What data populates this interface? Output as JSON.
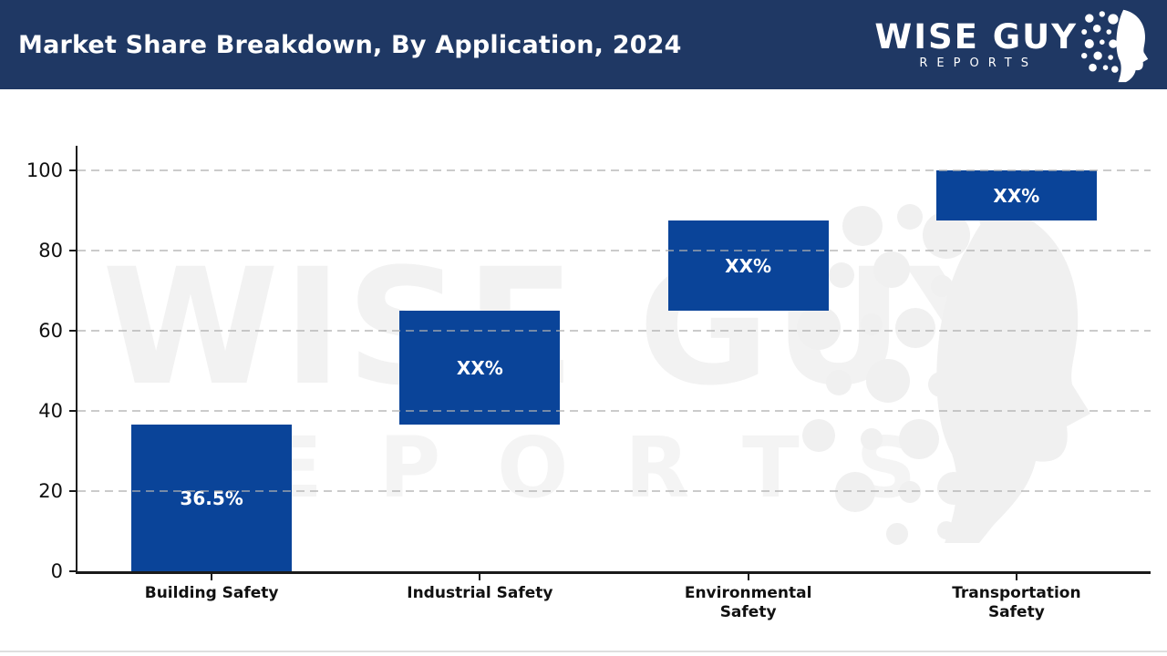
{
  "header": {
    "title": "Market Share Breakdown, By Application, 2024",
    "bg_color": "#1f3864",
    "logo": {
      "line1": "WISE GUY",
      "line2": "REPORTS"
    }
  },
  "watermark": {
    "line1": "WISE GUY",
    "line2": "REPORTS"
  },
  "chart_data": {
    "type": "bar",
    "subtype": "floating-waterfall",
    "title": "Market Share Breakdown, By Application, 2024",
    "categories": [
      "Building Safety",
      "Industrial Safety",
      "Environmental Safety",
      "Transportation Safety"
    ],
    "segments": [
      {
        "category": "Building Safety",
        "category_lines": [
          "Building Safety"
        ],
        "start": 0,
        "end": 36.5,
        "label": "36.5%"
      },
      {
        "category": "Industrial Safety",
        "category_lines": [
          "Industrial Safety"
        ],
        "start": 36.5,
        "end": 65,
        "label": "XX%"
      },
      {
        "category": "Environmental Safety",
        "category_lines": [
          "Environmental",
          "Safety"
        ],
        "start": 65,
        "end": 87.5,
        "label": "XX%"
      },
      {
        "category": "Transportation Safety",
        "category_lines": [
          "Transportation",
          "Safety"
        ],
        "start": 87.5,
        "end": 100,
        "label": "XX%"
      }
    ],
    "y_ticks": [
      0,
      20,
      40,
      60,
      80,
      100
    ],
    "ylim": [
      0,
      106
    ],
    "grid": "horizontal-dashed",
    "legend": "none",
    "bar_color": "#0a4499",
    "bar_label_color": "#ffffff",
    "axis_color": "#1a1a1a"
  }
}
